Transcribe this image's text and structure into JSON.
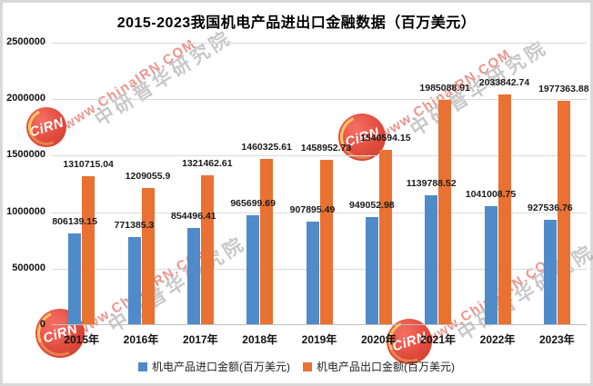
{
  "title": "2015-2023我国机电产品进出口金融数据（百万美元）",
  "y_axis": {
    "ticks": [
      "2500000",
      "2000000",
      "1500000",
      "1000000",
      "500000",
      "0"
    ],
    "max": 2500000
  },
  "legend": [
    {
      "label": "机电产品进口金额(百万美元)",
      "color": "#4F8BC9"
    },
    {
      "label": "机电产品出口金额(百万美元)",
      "color": "#E97132"
    }
  ],
  "chart_data": {
    "type": "bar",
    "title": "2015-2023我国机电产品进出口金融数据（百万美元）",
    "categories": [
      "2015年",
      "2016年",
      "2017年",
      "2018年",
      "2019年",
      "2020年",
      "2021年",
      "2022年",
      "2023年"
    ],
    "series": [
      {
        "name": "机电产品进口金额(百万美元)",
        "color": "#4F8BC9",
        "values": [
          806139.15,
          771385.3,
          854496.41,
          965699.69,
          907895.49,
          949052.98,
          1139788.52,
          1041008.75,
          927536.76
        ],
        "labels": [
          "806139.15",
          "771385.3",
          "854496.41",
          "965699.69",
          "907895.49",
          "949052.98",
          "1139788.52",
          "1041008.75",
          "927536.76"
        ]
      },
      {
        "name": "机电产品出口金额(百万美元)",
        "color": "#E97132",
        "values": [
          1310715.04,
          1209055.9,
          1321462.61,
          1460325.61,
          1458952.73,
          1540594.15,
          1985088.91,
          2033842.74,
          1977363.88
        ],
        "labels": [
          "1310715.04",
          "1209055.9",
          "1321462.61",
          "1460325.61",
          "1458952.73",
          "1540594.15",
          "1985088.91",
          "2033842.74",
          "1977363.88"
        ]
      }
    ],
    "xlabel": "",
    "ylabel": "",
    "ylim": [
      0,
      2500000
    ],
    "grid": true,
    "legend_position": "bottom"
  },
  "watermark": {
    "url_text": "www.ChinaIRN.COM",
    "brand_text": "中研普华研究院",
    "logo_text": "CiRN"
  }
}
